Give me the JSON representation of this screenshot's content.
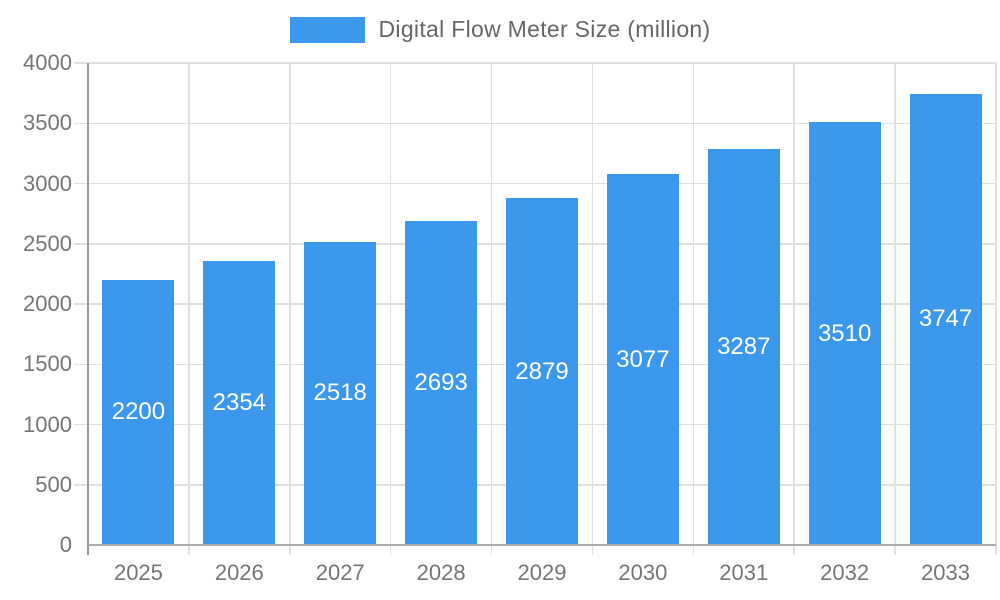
{
  "legend": {
    "label": "Digital Flow Meter Size (million)"
  },
  "chart_data": {
    "type": "bar",
    "title": "Digital Flow Meter Size (million)",
    "series_name": "Digital Flow Meter Size (million)",
    "categories": [
      "2025",
      "2026",
      "2027",
      "2028",
      "2029",
      "2030",
      "2031",
      "2032",
      "2033"
    ],
    "values": [
      2200,
      2354,
      2518,
      2693,
      2879,
      3077,
      3287,
      3510,
      3747
    ],
    "xlabel": "",
    "ylabel": "",
    "ylim": [
      0,
      4000
    ],
    "yticks": [
      0,
      500,
      1000,
      1500,
      2000,
      2500,
      3000,
      3500,
      4000
    ],
    "grid": true,
    "legend_position": "top",
    "bar_color": "#3b98ed",
    "value_label_color": "#ffffff",
    "axis_text_color": "#757575",
    "legend_text_color": "#666666",
    "gridline_color": "#e0e0e0",
    "y_axis_line_color": "#9a9a9a",
    "x_axis_line_color": "#ababab",
    "background_color": "#ffffff"
  }
}
